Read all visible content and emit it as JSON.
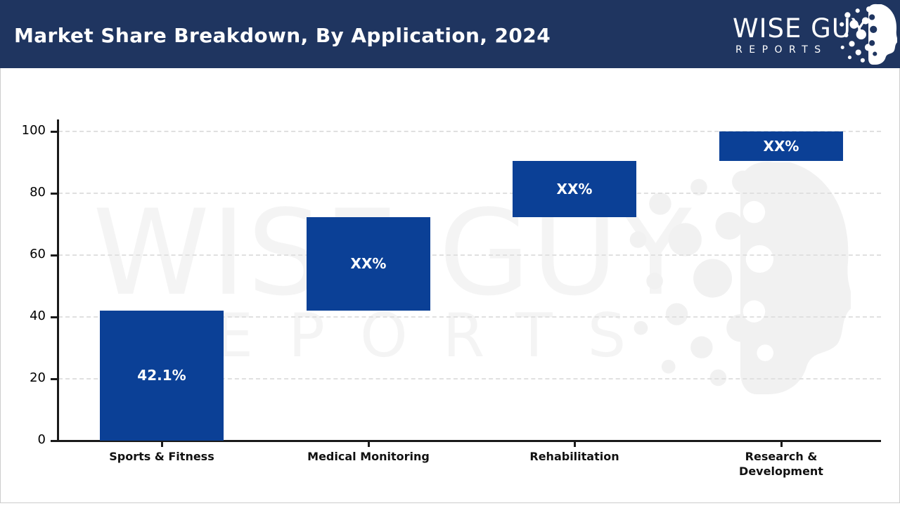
{
  "page": {
    "background": "#ffffff",
    "frame_border": "#cccccc"
  },
  "header": {
    "bg_color": "#1f3560",
    "title": "Market Share Breakdown, By Application, 2024",
    "brand_line1": "WISE GUY",
    "brand_line2": "REPORTS"
  },
  "watermark": {
    "line1": "WISE GUY",
    "line2": "REPORTS"
  },
  "chart_data": {
    "type": "bar",
    "subtype": "waterfall",
    "title": "Market Share Breakdown, By Application, 2024",
    "categories": [
      "Sports & Fitness",
      "Medical Monitoring",
      "Rehabilitation",
      "Research & Development"
    ],
    "x_tick_labels": [
      "Sports & Fitness",
      "Medical Monitoring",
      "Rehabilitation",
      "Research &\nDevelopment"
    ],
    "series": [
      {
        "name": "Market share (%)",
        "segments": [
          {
            "category": "Sports & Fitness",
            "start": 0,
            "end": 42.1,
            "label": "42.1%"
          },
          {
            "category": "Medical Monitoring",
            "start": 42.1,
            "end": 72.3,
            "label": "XX%"
          },
          {
            "category": "Rehabilitation",
            "start": 72.3,
            "end": 90.5,
            "label": "XX%"
          },
          {
            "category": "Research & Development",
            "start": 90.5,
            "end": 100,
            "label": "XX%"
          }
        ]
      }
    ],
    "ylim": [
      0,
      104
    ],
    "yticks": [
      0,
      20,
      40,
      60,
      80,
      100
    ],
    "grid": "horizontal-dashed",
    "legend": "none",
    "bar_color": "#0b4096",
    "bar_label_color": "#ffffff",
    "axis_color": "#1a1a1a",
    "gridline_color": "#e0e0e0"
  }
}
